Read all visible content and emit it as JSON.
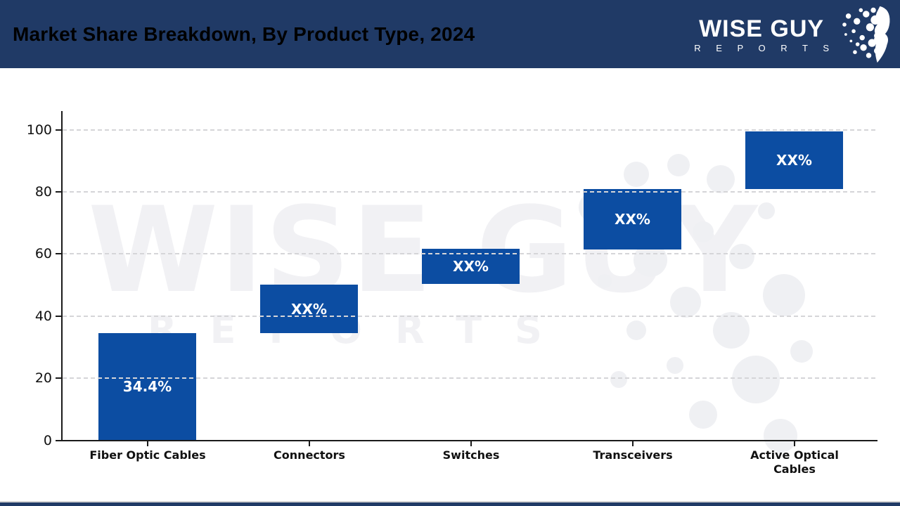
{
  "header": {
    "title": "Market Share Breakdown, By Product Type, 2024",
    "logo": {
      "line1": "WISE GUY",
      "line2": "R E P O R T S"
    }
  },
  "watermark": {
    "line1": "WISE GUY",
    "line2": "REPORTS"
  },
  "colors": {
    "header_bg": "#203a66",
    "bar": "#0c4da2",
    "grid": "#d5d5d8",
    "axis": "#1a1a1a",
    "bar_label": "#ffffff",
    "watermark": "#f1f1f4"
  },
  "chart_data": {
    "type": "bar",
    "subtype": "waterfall",
    "title": "Market Share Breakdown, By Product Type, 2024",
    "categories": [
      "Fiber Optic Cables",
      "Connectors",
      "Switches",
      "Transceivers",
      "Active Optical Cables"
    ],
    "tick_labels": [
      "Fiber Optic Cables",
      "Connectors",
      "Switches",
      "Transceivers",
      "Active Optical\nCables"
    ],
    "segments": [
      {
        "category": "Fiber Optic Cables",
        "start": 0,
        "end": 34.4,
        "label": "34.4%"
      },
      {
        "category": "Connectors",
        "start": 34.4,
        "end": 50.2,
        "label": "XX%"
      },
      {
        "category": "Switches",
        "start": 50.4,
        "end": 61.7,
        "label": "XX%"
      },
      {
        "category": "Transceivers",
        "start": 61.5,
        "end": 80.8,
        "label": "XX%"
      },
      {
        "category": "Active Optical Cables",
        "start": 80.9,
        "end": 99.4,
        "label": "XX%"
      }
    ],
    "xlabel": "",
    "ylabel": "",
    "ylim": [
      0,
      100
    ],
    "yticks": [
      0,
      20,
      40,
      60,
      80,
      100
    ],
    "grid": "horizontal-dashed",
    "legend": "none",
    "bar_color": "#0c4da2",
    "value_label_color": "#ffffff"
  }
}
